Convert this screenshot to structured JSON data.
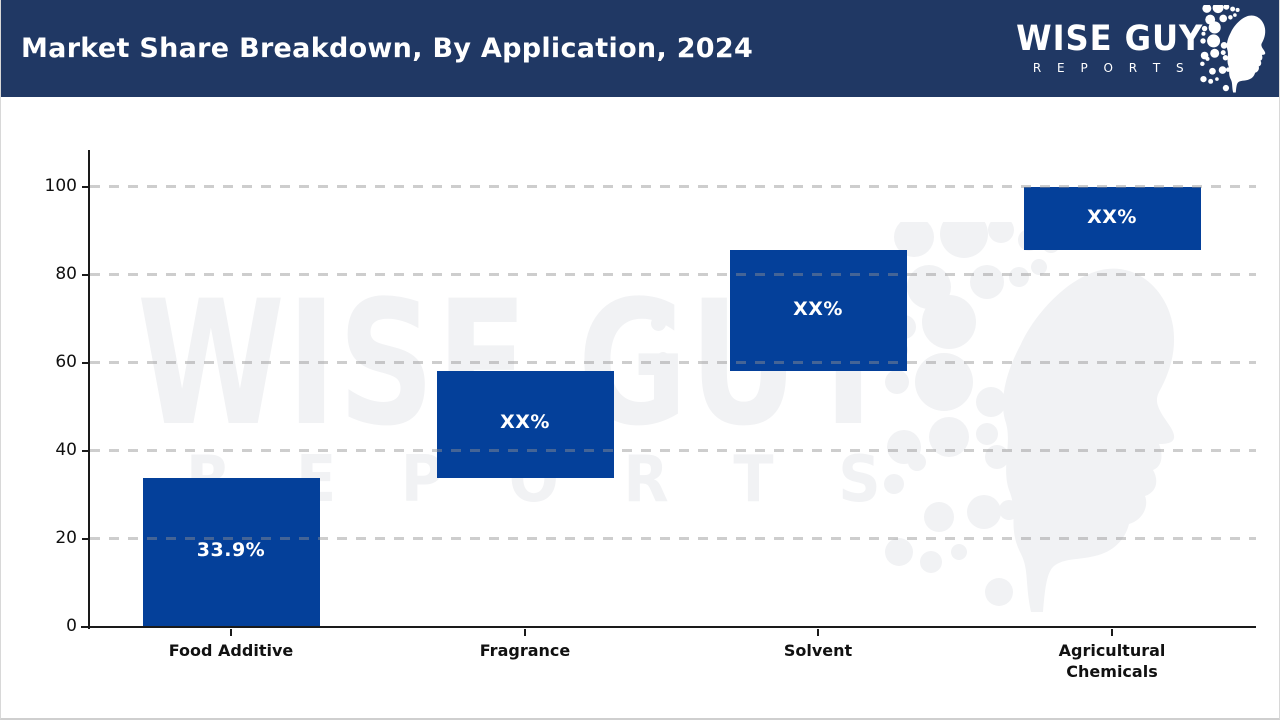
{
  "header": {
    "title": "Market Share Breakdown, By Application, 2024",
    "logo_text": "WISE GUY",
    "logo_subtext": "R E P O R T S"
  },
  "watermark": {
    "line1": "WISE GUY",
    "line2": "R E P O R T S"
  },
  "colors": {
    "header_bg": "#203864",
    "bar": "#04409a",
    "axis": "#1a1a1a",
    "grid_dash": "#d2d2d2",
    "watermark": "#f1f2f4",
    "text": "#111111"
  },
  "chart_data": {
    "type": "bar",
    "subtype": "waterfall",
    "title": "Market Share Breakdown, By Application, 2024",
    "categories": [
      "Food Additive",
      "Fragrance",
      "Solvent",
      "Agricultural Chemicals"
    ],
    "series": [
      {
        "name": "Market share (%)",
        "segments": [
          {
            "category": "Food Additive",
            "start": 0,
            "end": 33.9,
            "label": "33.9%"
          },
          {
            "category": "Fragrance",
            "start": 33.9,
            "end": 58.2,
            "label": "XX%"
          },
          {
            "category": "Solvent",
            "start": 58.2,
            "end": 85.5,
            "label": "XX%"
          },
          {
            "category": "Agricultural Chemicals",
            "start": 85.5,
            "end": 100,
            "label": "XX%"
          }
        ]
      }
    ],
    "ylim": [
      0,
      100
    ],
    "yticks": [
      0,
      20,
      40,
      60,
      80,
      100
    ],
    "xlabel": "",
    "ylabel": "",
    "grid": "horizontal-dashed",
    "legend": "none"
  }
}
